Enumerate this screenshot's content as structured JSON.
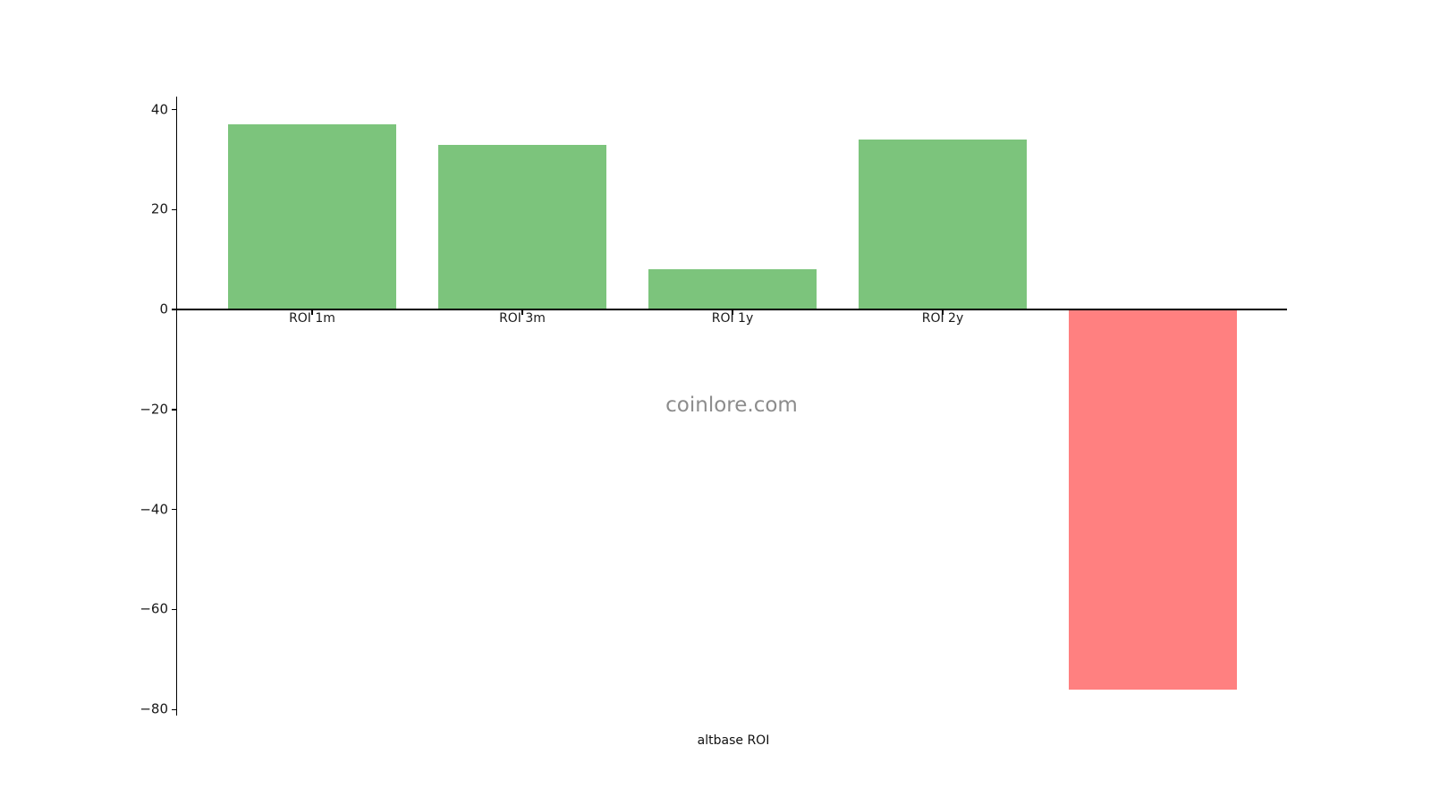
{
  "watermark": {
    "text": "coinlore.com"
  },
  "chart_data": {
    "type": "bar",
    "title": "",
    "xlabel": "altbase ROI",
    "ylabel": "",
    "categories": [
      "ROI 1m",
      "ROI 3m",
      "ROI 1y",
      "ROI 2y",
      ""
    ],
    "values": [
      37,
      33,
      8,
      34,
      -76
    ],
    "series": [
      {
        "name": "altbase ROI",
        "values": [
          37,
          33,
          8,
          34,
          -76
        ]
      }
    ],
    "ylim": [
      -81.2,
      42.6
    ],
    "yticks": [
      40,
      20,
      0,
      -20,
      -40,
      -60,
      -80
    ],
    "ytick_labels": [
      "40",
      "20",
      "0",
      "−20",
      "−40",
      "−60",
      "−80"
    ],
    "grid": false,
    "legend_position": "none",
    "positive_color": "#7cc47c",
    "negative_color": "#ff8080",
    "axis_color": "#000000"
  }
}
